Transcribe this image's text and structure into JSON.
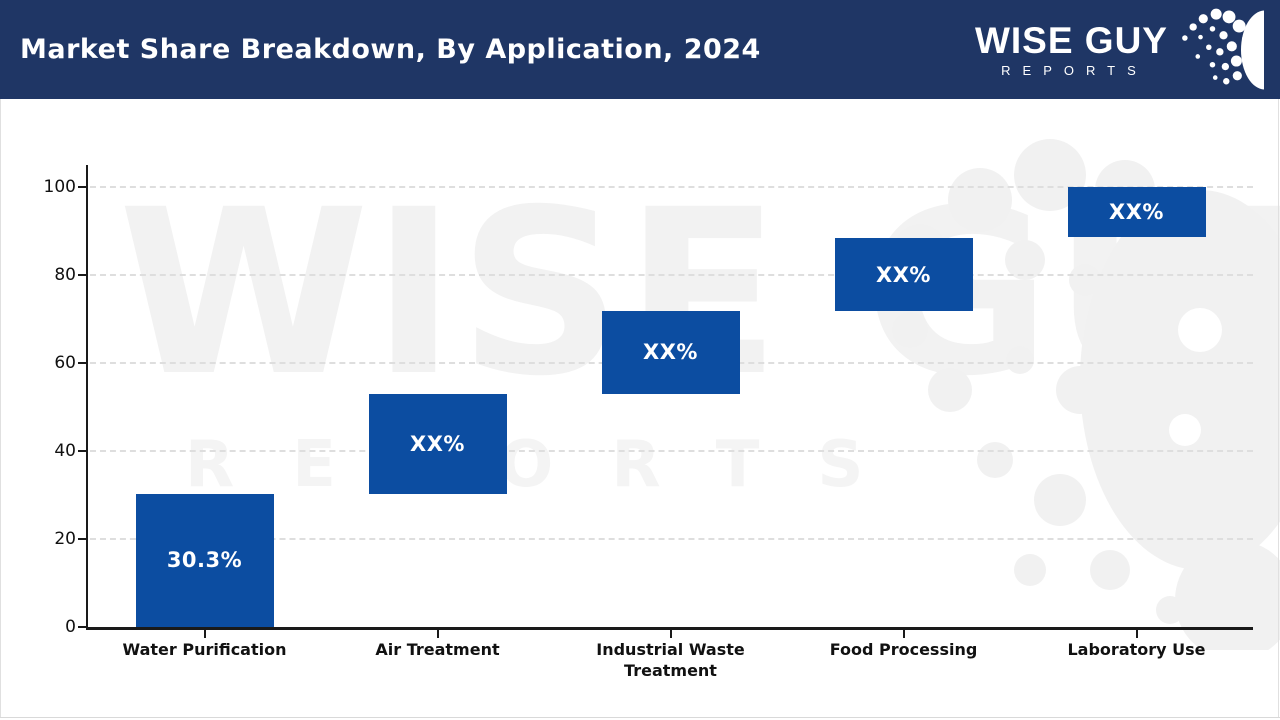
{
  "header": {
    "title": "Market Share Breakdown, By Application, 2024",
    "logo": {
      "line1": "WISE GUY",
      "line2": "REPORTS"
    }
  },
  "watermark": {
    "line1": "WISE GUY",
    "line2": "REPORTS"
  },
  "chart_data": {
    "type": "bar",
    "subtype": "waterfall",
    "title": "Market Share Breakdown, By Application, 2024",
    "categories": [
      "Water Purification",
      "Air Treatment",
      "Industrial Waste Treatment",
      "Food Processing",
      "Laboratory Use"
    ],
    "segments": [
      {
        "category": "Water Purification",
        "start": 0,
        "end": 30.3,
        "label": "30.3%"
      },
      {
        "category": "Air Treatment",
        "start": 30.3,
        "end": 53.0,
        "label": "XX%"
      },
      {
        "category": "Industrial Waste Treatment",
        "start": 53.0,
        "end": 71.8,
        "label": "XX%"
      },
      {
        "category": "Food Processing",
        "start": 71.8,
        "end": 88.4,
        "label": "XX%"
      },
      {
        "category": "Laboratory Use",
        "start": 88.6,
        "end": 100,
        "label": "XX%"
      }
    ],
    "ylim": [
      0,
      100
    ],
    "yticks": [
      0,
      20,
      40,
      60,
      80,
      100
    ],
    "xlabel": "",
    "ylabel": "",
    "grid": "dashed-horizontal",
    "legend": null
  },
  "colors": {
    "header_navy": "#1f3665",
    "bar_blue": "#0c4da1",
    "bar_label_white": "#ffffff",
    "gridline_gray": "#dedede",
    "axis_black": "#1a1a1a",
    "watermark_gray": "#f2f2f2"
  }
}
